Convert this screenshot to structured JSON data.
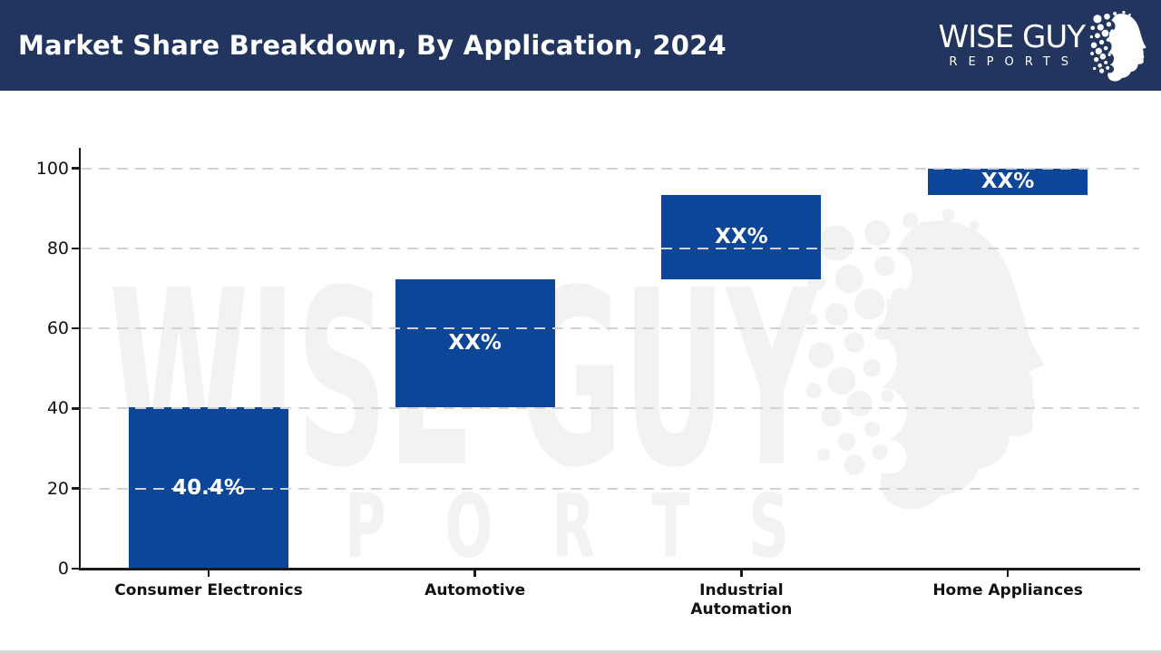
{
  "header": {
    "title": "Market Share Breakdown, By Application, 2024",
    "brand_line1": "WISE GUY",
    "brand_line2": "REPORTS"
  },
  "watermark": {
    "line1": "WISE GUY",
    "line2": "REPORTS"
  },
  "colors": {
    "header_bg": "#22355F",
    "bar": "#0D4599",
    "grid": "#D2D2D2",
    "axis": "#1A1A1A",
    "bar_label_text": "#FFFFFF",
    "tick_text": "#111111",
    "watermark": "#F1F2F4"
  },
  "chart_data": {
    "type": "bar",
    "subtype": "waterfall",
    "title": "Market Share Breakdown, By Application, 2024",
    "categories": [
      "Consumer Electronics",
      "Automotive",
      "Industrial Automation",
      "Home Appliances"
    ],
    "segments": [
      {
        "category": "Consumer Electronics",
        "start": 0,
        "end": 40.4,
        "label": "40.4%"
      },
      {
        "category": "Automotive",
        "start": 40.4,
        "end": 72.3,
        "label": "XX%"
      },
      {
        "category": "Industrial Automation",
        "start": 72.3,
        "end": 93.4,
        "label": "XX%"
      },
      {
        "category": "Home Appliances",
        "start": 93.4,
        "end": 100,
        "label": "XX%"
      }
    ],
    "xlabel": "",
    "ylabel": "",
    "ylim": [
      0,
      100
    ],
    "yticks": [
      0,
      20,
      40,
      60,
      80,
      100
    ],
    "grid": "horizontal-dashed",
    "legend": "none",
    "bar_color": "#0D4599"
  }
}
